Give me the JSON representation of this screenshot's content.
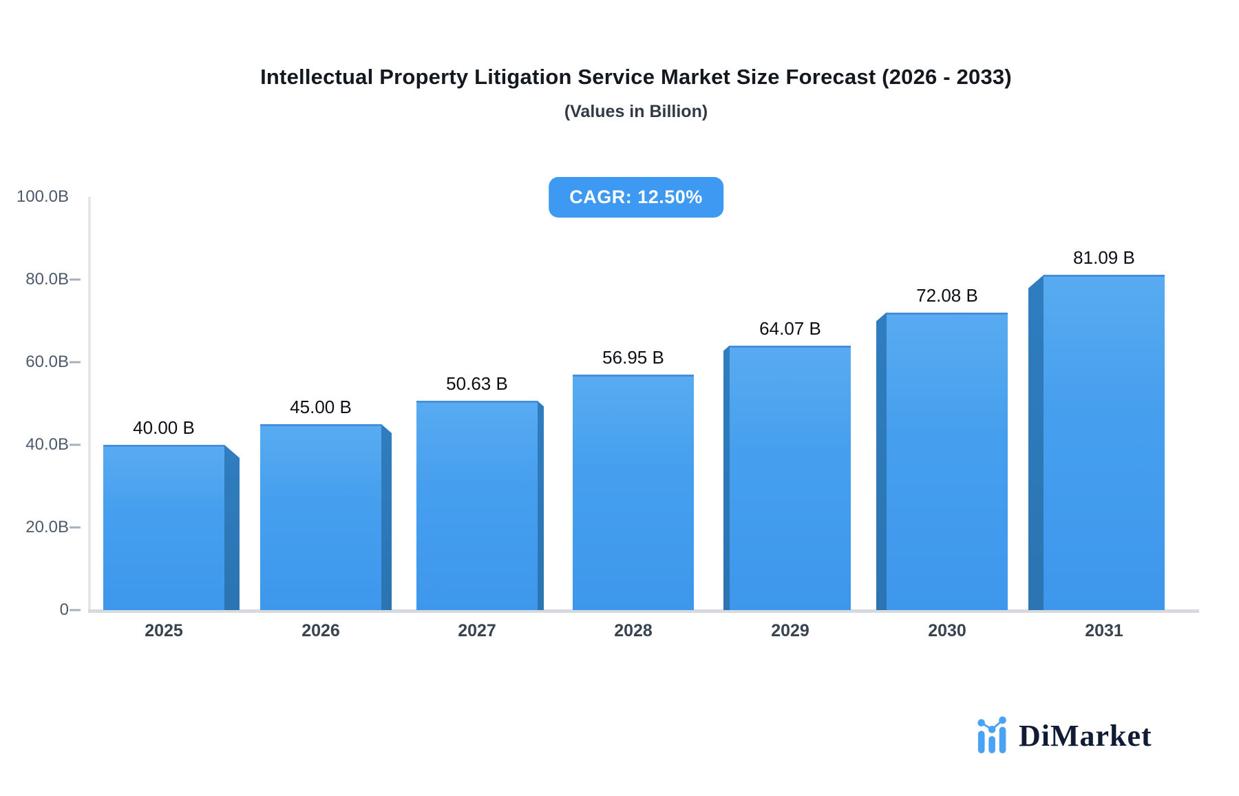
{
  "header": {
    "title": "Intellectual Property Litigation Service Market Size Forecast (2026 - 2033)",
    "subtitle": "(Values in Billion)",
    "cagr_badge": "CAGR: 12.50%"
  },
  "brand": {
    "name": "DiMarket"
  },
  "colors": {
    "accent": "#3d99f2",
    "bar_face_top": "#58abf0",
    "bar_face_bottom": "#3e97ec",
    "bar_side": "#2f7dbf",
    "title_color": "#14181f",
    "subtitle_color": "#333a46",
    "value_color": "#0c0f14",
    "ytick_color": "#4d5a6b",
    "xtick_color": "#39424f",
    "axis_line": "#e3e6ea",
    "baseline": "#d6dade",
    "brand_navy": "#101c33",
    "brand_blue": "#4aa2f4"
  },
  "chart_data": {
    "type": "bar",
    "title": "Intellectual Property Litigation Service Market Size Forecast (2026 - 2033)",
    "subtitle": "(Values in Billion)",
    "annotation": "CAGR: 12.50%",
    "categories": [
      "2025",
      "2026",
      "2027",
      "2028",
      "2029",
      "2030",
      "2031"
    ],
    "values": [
      40.0,
      45.0,
      50.63,
      56.95,
      64.07,
      72.08,
      81.09
    ],
    "value_labels": [
      "40.00 B",
      "45.00 B",
      "50.63 B",
      "56.95 B",
      "64.07 B",
      "72.08 B",
      "81.09 B"
    ],
    "unit": "Billion",
    "ylim": [
      0,
      100
    ],
    "yticks": [
      {
        "value": 100,
        "label": "100.0B"
      },
      {
        "value": 80,
        "label": "80.0B"
      },
      {
        "value": 60,
        "label": "60.0B"
      },
      {
        "value": 40,
        "label": "40.0B"
      },
      {
        "value": 20,
        "label": "20.0B"
      },
      {
        "value": 0,
        "label": "0"
      }
    ],
    "grid": false,
    "legend": "none",
    "bar_style": "3d-perspective"
  }
}
